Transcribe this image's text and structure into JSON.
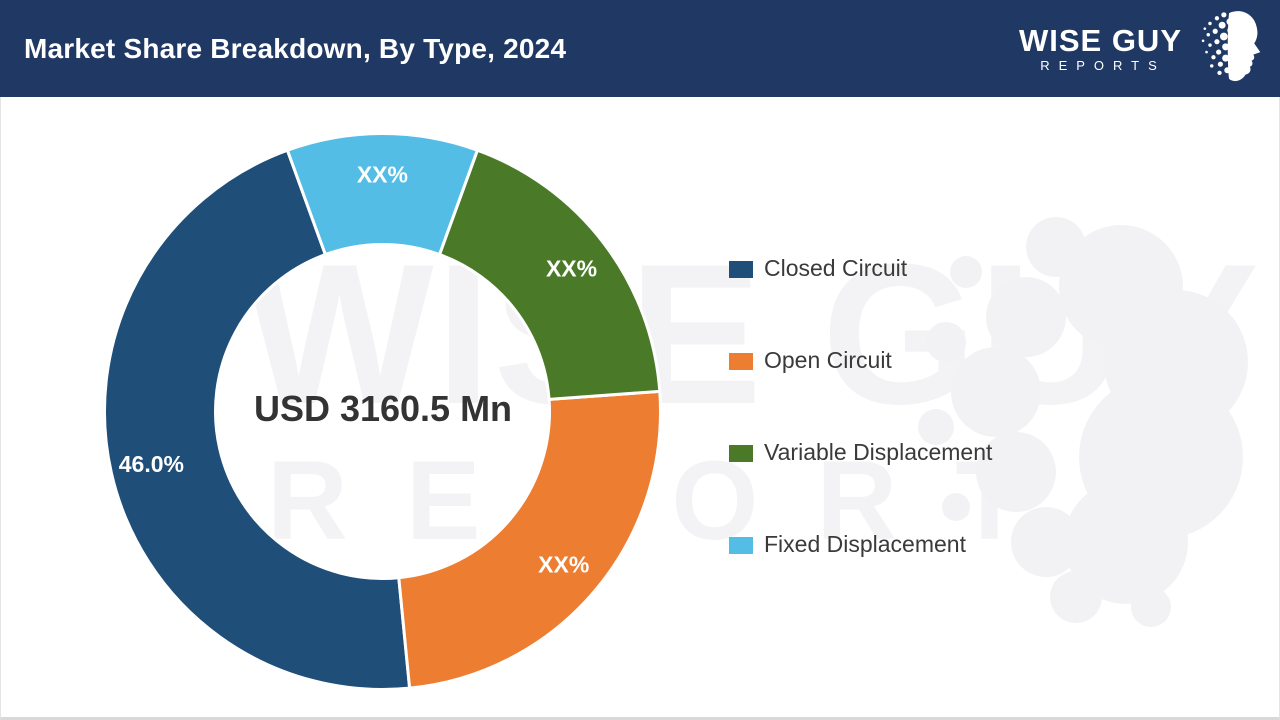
{
  "header": {
    "title": "Market Share Breakdown, By Type, 2024",
    "bg_color": "#1F3864",
    "logo": {
      "line1": "WISE GUY",
      "line2": "REPORTS"
    }
  },
  "watermark": {
    "line1": "WISE GUY",
    "line2": "REPORTS"
  },
  "chart_data": {
    "type": "pie",
    "variant": "donut",
    "title": "Market Share Breakdown, By Type, 2024",
    "center_label": "USD 3160.5 Mn",
    "start_angle_deg": 110,
    "direction": "counterclockwise",
    "legend_position": "right",
    "segments": [
      {
        "label": "Closed Circuit",
        "color": "#1F4E79",
        "value_label": "46.0%",
        "share_pct": 46.0
      },
      {
        "label": "Open Circuit",
        "color": "#ED7D31",
        "value_label": "XX%",
        "share_pct": 24.6
      },
      {
        "label": "Variable Displacement",
        "color": "#4A7A28",
        "value_label": "XX%",
        "share_pct": 18.3
      },
      {
        "label": "Fixed Displacement",
        "color": "#53BDE5",
        "value_label": "XX%",
        "share_pct": 11.1
      }
    ]
  }
}
